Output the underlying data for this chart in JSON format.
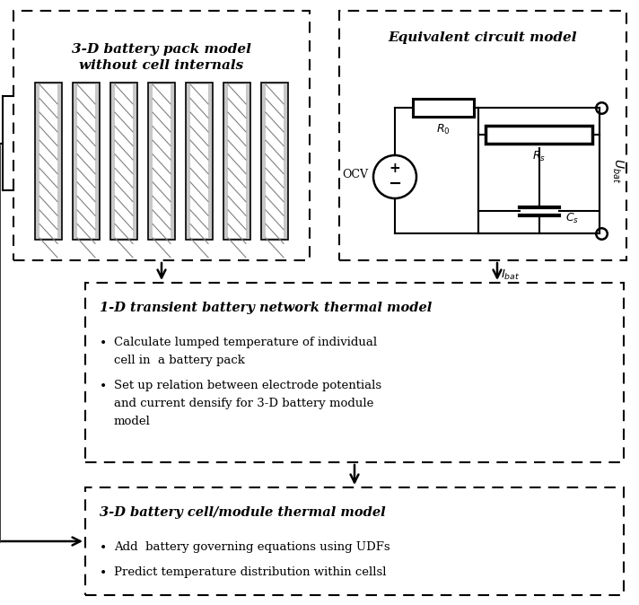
{
  "fig_width": 7.12,
  "fig_height": 6.74,
  "bg_color": "#ffffff",
  "box1_title": "3-D battery pack model\nwithout cell internals",
  "box2_title": "Equivalent circuit model",
  "box3_title": "1-D transient battery network thermal model",
  "box3_bullet1_line1": "Calculate lumped temperature of individual",
  "box3_bullet1_line2": "cell in  a battery pack",
  "box3_bullet2_line1": "Set up relation between electrode potentials",
  "box3_bullet2_line2": "and current densify for 3-D battery module",
  "box3_bullet2_line3": "model",
  "box4_title": "3-D battery cell/module thermal model",
  "box4_bullet1": "Add  battery governing equations using UDFs",
  "box4_bullet2": "Predict temperature distribution within cellsl"
}
